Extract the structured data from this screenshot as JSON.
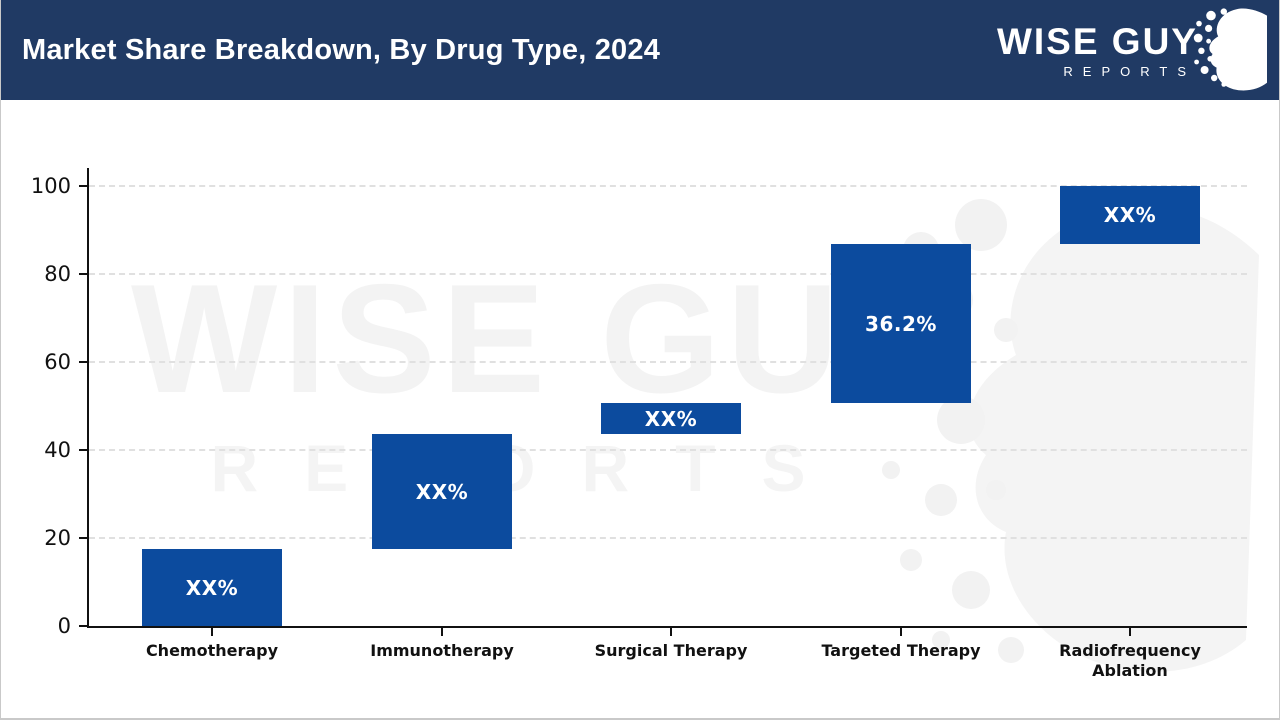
{
  "header": {
    "title": "Market Share Breakdown, By Drug Type, 2024",
    "brand": {
      "line1": "WISE GUY",
      "line2": "REPORTS"
    }
  },
  "watermark": {
    "line1": "WISE GUY",
    "line2": "REPORTS"
  },
  "colors": {
    "header_bg": "#203A64",
    "bar": "#0C4B9E",
    "grid": "#e0e0e0",
    "axis": "#111111",
    "watermark": "#f3f3f3"
  },
  "chart_data": {
    "type": "bar",
    "subtype": "waterfall",
    "title": "Market Share Breakdown, By Drug Type, 2024",
    "categories": [
      "Chemotherapy",
      "Immunotherapy",
      "Surgical Therapy",
      "Targeted Therapy",
      "Radiofrequency\nAblation"
    ],
    "segments": [
      {
        "category": "Chemotherapy",
        "start": 0,
        "end": 17.4,
        "label": "XX%"
      },
      {
        "category": "Immunotherapy",
        "start": 17.4,
        "end": 43.6,
        "label": "XX%"
      },
      {
        "category": "Surgical Therapy",
        "start": 43.6,
        "end": 50.6,
        "label": "XX%"
      },
      {
        "category": "Targeted Therapy",
        "start": 50.6,
        "end": 86.8,
        "label": "36.2%"
      },
      {
        "category": "Radiofrequency Ablation",
        "start": 86.8,
        "end": 100,
        "label": "XX%"
      }
    ],
    "yticks": [
      0,
      20,
      40,
      60,
      80,
      100
    ],
    "ylim": [
      0,
      105
    ],
    "xlabel": "",
    "ylabel": "",
    "grid": "horizontal-dashed",
    "legend": "none"
  }
}
